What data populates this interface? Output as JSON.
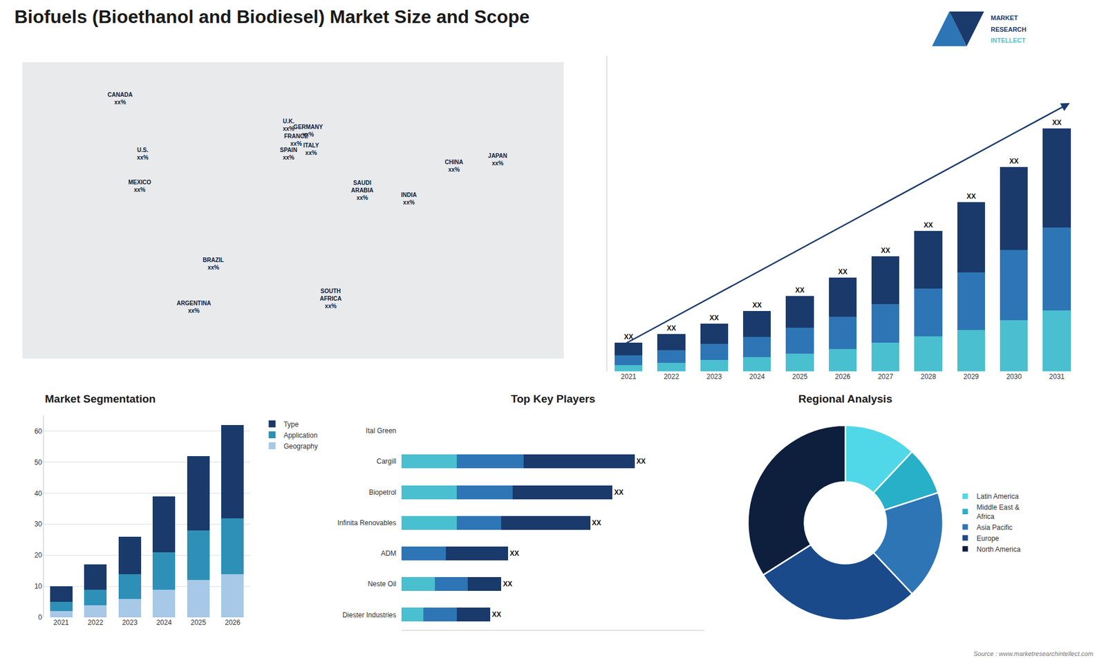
{
  "title": "Biofuels (Bioethanol and Biodiesel) Market Size and Scope",
  "annotations": [
    "MARKET",
    "RESEARCH",
    "INTELLECT",
    "Source : www.marketresearchintellect.com"
  ],
  "chart_data": [
    {
      "type": "map",
      "categories": [
        "CANADA",
        "U.S.",
        "MEXICO",
        "BRAZIL",
        "ARGENTINA",
        "U.K.",
        "FRANCE",
        "SPAIN",
        "GERMANY",
        "ITALY",
        "SAUDI\nARABIA",
        "SOUTH\nAFRICA",
        "CHINA",
        "INDIA",
        "JAPAN"
      ],
      "x": [
        -115,
        -100,
        -102,
        -53,
        -66,
        -3,
        2,
        -3,
        10,
        12,
        46,
        25,
        107,
        77,
        136
      ],
      "y": [
        67,
        40,
        24,
        -14,
        -35,
        54,
        46.5,
        40,
        51,
        42,
        22,
        -31,
        34,
        18,
        37
      ],
      "value_labels": [
        "xx%",
        "xx%",
        "xx%",
        "xx%",
        "xx%",
        "xx%",
        "xx%",
        "xx%",
        "xx%",
        "xx%",
        "xx%",
        "xx%",
        "xx%",
        "xx%",
        "xx%"
      ],
      "xlim": [
        -180,
        180
      ],
      "ylim": [
        -60,
        85
      ],
      "tick_labels": false
    },
    {
      "type": "bar",
      "stacked": true,
      "categories": [
        "2021",
        "2022",
        "2023",
        "2024",
        "2025",
        "2026",
        "2027",
        "2028",
        "2029",
        "2030",
        "2031"
      ],
      "series": [
        {
          "color": "#4abfcf",
          "values": [
            1.0,
            1.3,
            1.8,
            2.2,
            2.8,
            3.5,
            4.5,
            5.5,
            6.5,
            8.0,
            9.5
          ]
        },
        {
          "color": "#2e75b6",
          "values": [
            1.5,
            2.0,
            2.5,
            3.2,
            4.0,
            5.0,
            6.0,
            7.5,
            9.0,
            11.0,
            13.0
          ]
        },
        {
          "color": "#1a3a6b",
          "values": [
            2,
            2.5,
            3.2,
            4.0,
            5.0,
            6.2,
            7.5,
            9.0,
            11.0,
            13.0,
            15.5
          ],
          "value_labels": [
            "XX",
            "XX",
            "XX",
            "XX",
            "XX",
            "XX",
            "XX",
            "XX",
            "XX",
            "XX",
            "XX"
          ]
        }
      ],
      "data_labels": true,
      "ylim": [
        0,
        49.4
      ],
      "yticks": [],
      "tick_labels": "x",
      "grid": false
    },
    {
      "type": "bar",
      "stacked": true,
      "title": "Market Segmentation",
      "categories": [
        "2021",
        "2022",
        "2023",
        "2024",
        "2025",
        "2026"
      ],
      "series": [
        {
          "name": "Geography",
          "color": "#a8c8e8",
          "values": [
            2,
            4,
            6,
            9,
            12,
            14
          ]
        },
        {
          "name": "Application",
          "color": "#2e90b6",
          "values": [
            3,
            5,
            8,
            12,
            16,
            18
          ]
        },
        {
          "name": "Type",
          "color": "#1a3a6b",
          "values": [
            5,
            8,
            12,
            18,
            24,
            30
          ]
        }
      ],
      "ylim": [
        0,
        65
      ],
      "yticks": [
        0,
        10,
        20,
        30,
        40,
        50,
        60
      ],
      "grid": true,
      "legend": "upper right"
    },
    {
      "type": "bar",
      "stacked": true,
      "orientation": "horizontal",
      "title": "Top Key Players",
      "categories": [
        "Ital Green",
        "Cargill",
        "Biopetrol",
        "Infinita Renovables",
        "ADM",
        "Neste Oil",
        "Diester Industries"
      ],
      "series": [
        {
          "color": "#4abfcf",
          "values": [
            0.0,
            2.5,
            2.5,
            2.5,
            0.0,
            1.5,
            1.0
          ]
        },
        {
          "color": "#2e75b6",
          "values": [
            0.0,
            3.0,
            2.5,
            2.0,
            2.0,
            1.5,
            1.5
          ]
        },
        {
          "color": "#1a3a6b",
          "values": [
            0.0,
            5.0,
            4.5,
            4.0,
            2.8,
            1.5,
            1.5
          ],
          "value_labels": [
            null,
            "XX",
            "XX",
            "XX",
            "XX",
            "XX",
            "XX"
          ]
        }
      ],
      "data_labels": true,
      "xlim": [
        0,
        13.65
      ],
      "xticks": [],
      "tick_labels": "y",
      "grid": false
    },
    {
      "type": "pie",
      "title": "Regional Analysis",
      "categories": [
        "Latin America",
        "Middle East &\nAfrica",
        "Asia Pacific",
        "Europe",
        "North America"
      ],
      "values": [
        12,
        8,
        18,
        28,
        34
      ],
      "colors": [
        "#50d8e8",
        "#28b0c8",
        "#2e75b6",
        "#1a4a8a",
        "#0d1f3c"
      ],
      "legend": "right"
    }
  ]
}
